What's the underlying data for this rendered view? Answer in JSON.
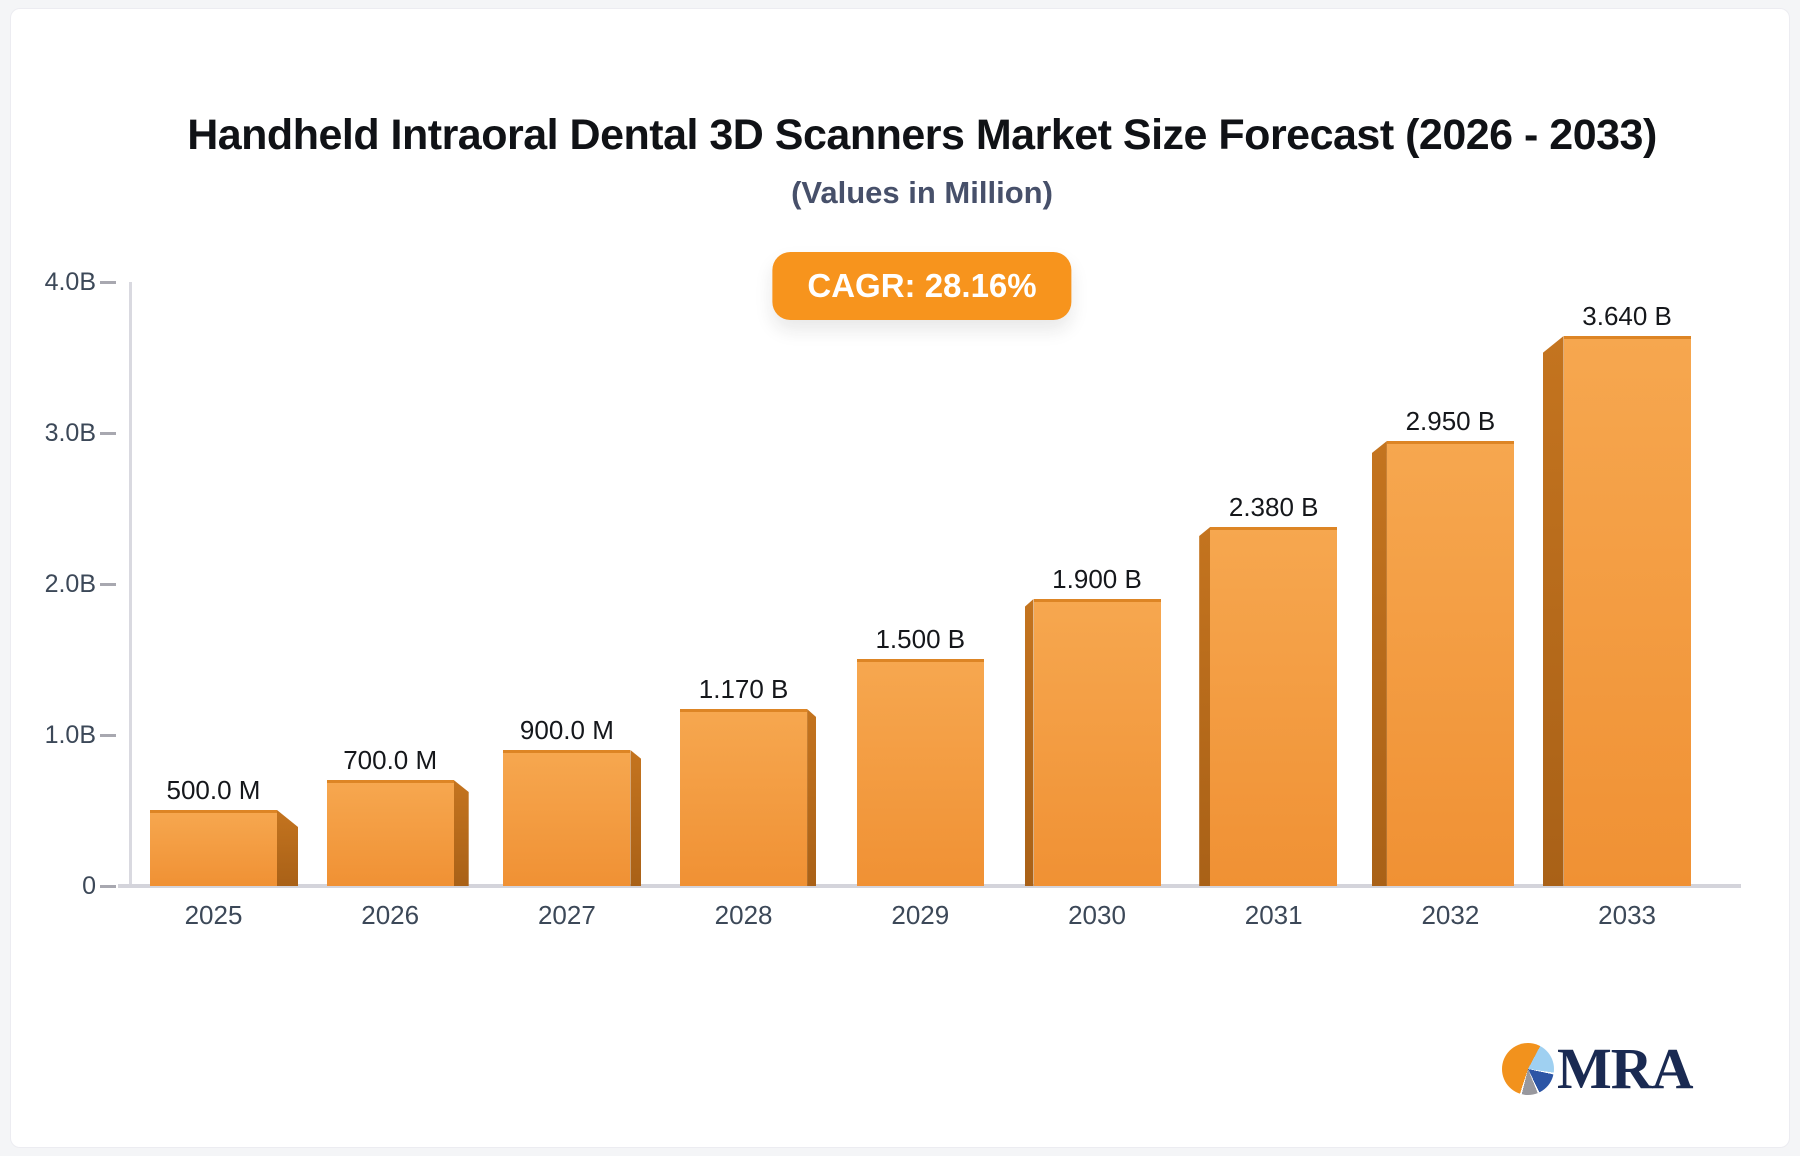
{
  "chart_data": {
    "type": "bar",
    "title": "Handheld Intraoral Dental 3D Scanners Market Size Forecast (2026 - 2033)",
    "subtitle": "(Values in Million)",
    "cagr_label": "CAGR: 28.16%",
    "categories": [
      "2025",
      "2026",
      "2027",
      "2028",
      "2029",
      "2030",
      "2031",
      "2032",
      "2033"
    ],
    "values_billions": [
      0.5,
      0.7,
      0.9,
      1.17,
      1.5,
      1.9,
      2.38,
      2.95,
      3.64
    ],
    "bar_labels": [
      "500.0 M",
      "700.0 M",
      "900.0 M",
      "1.170 B",
      "1.500 B",
      "1.900 B",
      "2.380 B",
      "2.950 B",
      "3.640 B"
    ],
    "ylabel": "",
    "xlabel": "",
    "ylim": [
      0,
      4
    ],
    "yticks": [
      {
        "label": "0",
        "value": 0
      },
      {
        "label": "1.0B",
        "value": 1
      },
      {
        "label": "2.0B",
        "value": 2
      },
      {
        "label": "3.0B",
        "value": 3
      },
      {
        "label": "4.0B",
        "value": 4
      }
    ],
    "grid": false,
    "legend": false,
    "colors": {
      "bar_top": "#f6a74f",
      "bar_bottom": "#f09134",
      "bar_top_edge": "#dd8525",
      "bar_side_light": "#c4741f",
      "bar_side_dark": "#a96117",
      "badge_bg": "#f7941d",
      "axis_tick_text": "#3c4858",
      "value_label_text": "#15171b"
    }
  },
  "logo": {
    "text": "MRA",
    "pie_colors": [
      "#f2921d",
      "#9fd0f1",
      "#2c55a5",
      "#98989e"
    ]
  }
}
